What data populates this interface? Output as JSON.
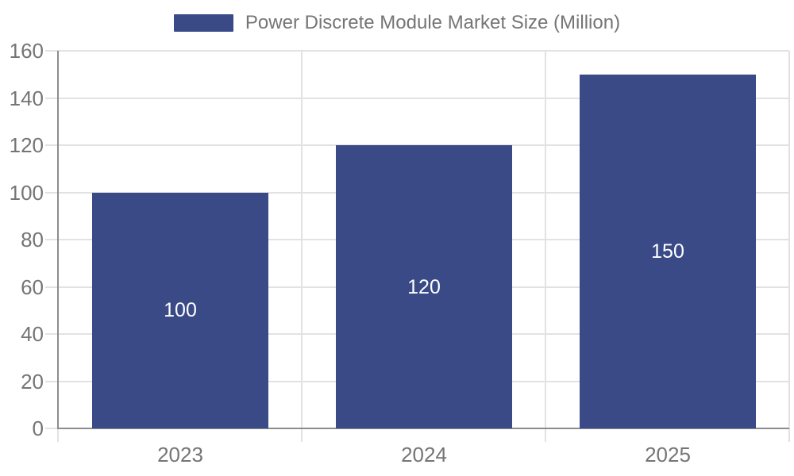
{
  "legend": {
    "label": "Power Discrete Module Market Size (Million)"
  },
  "chart_data": {
    "type": "bar",
    "title": "Power Discrete Module Market Size (Million)",
    "categories": [
      "2023",
      "2024",
      "2025"
    ],
    "values": [
      100,
      120,
      150
    ],
    "data_labels": [
      "100",
      "120",
      "150"
    ],
    "xlabel": "",
    "ylabel": "",
    "ylim": [
      0,
      160
    ],
    "ytick_step": 20,
    "ytick_labels": [
      "0",
      "20",
      "40",
      "60",
      "80",
      "100",
      "120",
      "140",
      "160"
    ],
    "grid": true,
    "legend_position": "top",
    "data_label_position": "inside-center",
    "colors": {
      "bar": "#3a4a87",
      "grid": "#e2e2e2",
      "axis": "#8d8d8d",
      "tick_text": "#757575",
      "data_label": "#ffffff",
      "background": "#ffffff"
    }
  }
}
